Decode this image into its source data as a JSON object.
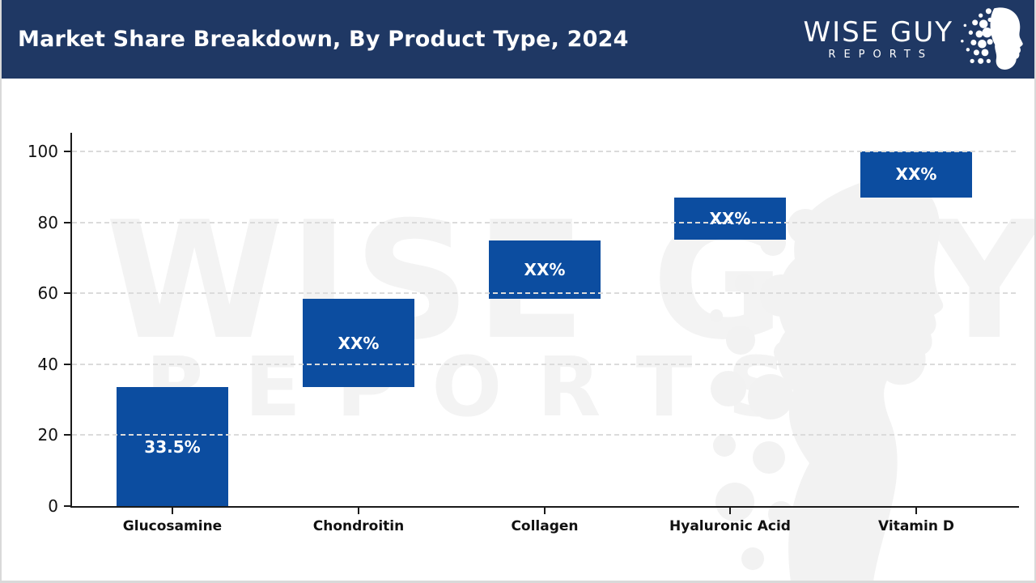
{
  "header": {
    "title": "Market Share Breakdown, By Product Type, 2024",
    "logo": {
      "line1": "WISE GUY",
      "line2": "REPORTS"
    }
  },
  "watermark": {
    "line1": "WISE GUY",
    "line2": "REPORTS"
  },
  "colors": {
    "header_bg": "#1F3864",
    "bar": "#0C4DA0",
    "bar_label": "#FFFFFF",
    "grid": "#DBDBDB",
    "axis": "#1A1A1A",
    "watermark": "#F3F3F3"
  },
  "chart_data": {
    "type": "bar",
    "subtype": "waterfall",
    "title": "Market Share Breakdown, By Product Type, 2024",
    "categories": [
      "Glucosamine",
      "Chondroitin",
      "Collagen",
      "Hyaluronic Acid",
      "Vitamin D"
    ],
    "segments": [
      {
        "category": "Glucosamine",
        "start": 0,
        "end": 33.5,
        "label": "33.5%"
      },
      {
        "category": "Chondroitin",
        "start": 33.5,
        "end": 58.5,
        "label": "XX%"
      },
      {
        "category": "Collagen",
        "start": 58.5,
        "end": 75,
        "label": "XX%"
      },
      {
        "category": "Hyaluronic Acid",
        "start": 75,
        "end": 87,
        "label": "XX%"
      },
      {
        "category": "Vitamin D",
        "start": 87,
        "end": 100,
        "label": "XX%"
      }
    ],
    "xlabel": "",
    "ylabel": "",
    "ylim": [
      0,
      100
    ],
    "yticks": [
      0,
      20,
      40,
      60,
      80,
      100
    ],
    "grid": "horizontal-dashed",
    "gridlines_above_bars": true,
    "legend": "none"
  }
}
